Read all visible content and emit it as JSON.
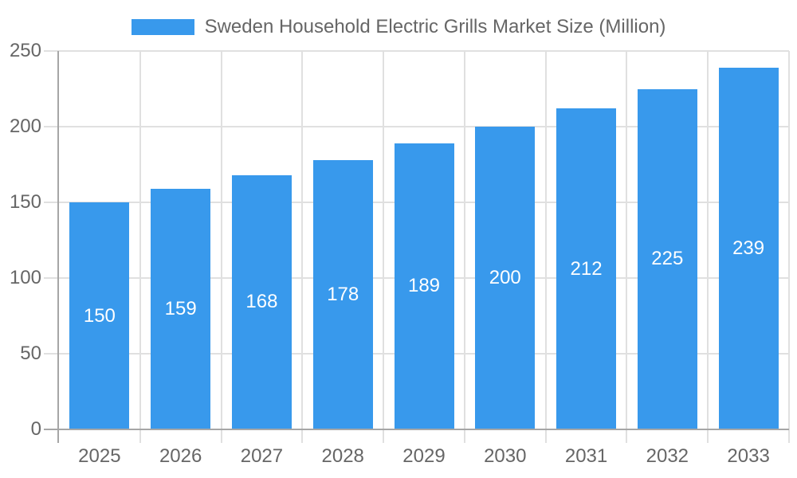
{
  "chart_data": {
    "type": "bar",
    "title": "Sweden Household Electric Grills Market Size (Million)",
    "legend_label": "Sweden Household Electric Grills Market Size (Million)",
    "legend_position": "top",
    "categories": [
      "2025",
      "2026",
      "2027",
      "2028",
      "2029",
      "2030",
      "2031",
      "2032",
      "2033"
    ],
    "values": [
      150,
      159,
      168,
      178,
      189,
      200,
      212,
      225,
      239
    ],
    "value_labels_visible": true,
    "xlabel": "",
    "ylabel": "",
    "ylim": [
      0,
      250
    ],
    "yticks": [
      0,
      50,
      100,
      150,
      200,
      250
    ],
    "grid": true,
    "colors": {
      "bar": "#3899ec",
      "bar_value_text": "#ffffff",
      "axis_line": "#a6a6a6",
      "grid_line": "#e0e0e0",
      "tick_text": "#666666",
      "legend_text": "#666666",
      "background": "#ffffff"
    }
  }
}
